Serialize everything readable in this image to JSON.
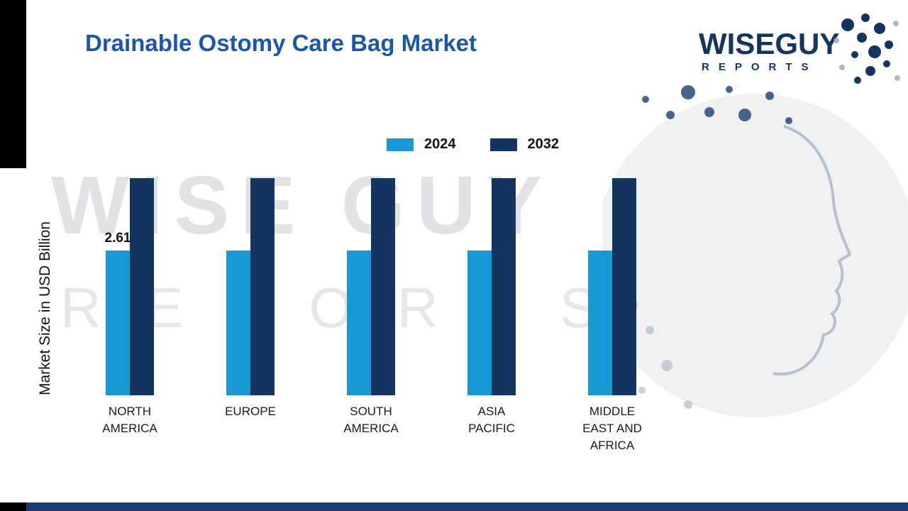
{
  "page": {
    "title": "Drainable Ostomy Care Bag Market"
  },
  "logo": {
    "name": "WISEGUY",
    "subtitle": "REPORTS"
  },
  "watermark": {
    "line1": "WISE GUY",
    "line2": "REPORTS"
  },
  "chart_data": {
    "type": "bar",
    "title": "Drainable Ostomy Care Bag Market",
    "ylabel": "Market Size in USD Billion",
    "xlabel": "",
    "categories": [
      "NORTH AMERICA",
      "EUROPE",
      "SOUTH AMERICA",
      "ASIA PACIFIC",
      "MIDDLE EAST AND AFRICA"
    ],
    "series": [
      {
        "name": "2024",
        "color": "#1899d5",
        "values": [
          2.61,
          2.61,
          2.61,
          2.61,
          2.61
        ]
      },
      {
        "name": "2032",
        "color": "#14355f",
        "values": [
          3.91,
          3.91,
          3.91,
          3.91,
          3.91
        ]
      }
    ],
    "annotations": [
      {
        "category_index": 0,
        "series": "2024",
        "text": "2.61"
      }
    ],
    "ylim": [
      0,
      4
    ],
    "grid": false,
    "legend_position": "top-center"
  },
  "colors": {
    "title_blue": "#1b57a8",
    "bar_2024": "#1899d5",
    "bar_2032": "#14355f",
    "footer_navy": "#1b3a70"
  }
}
